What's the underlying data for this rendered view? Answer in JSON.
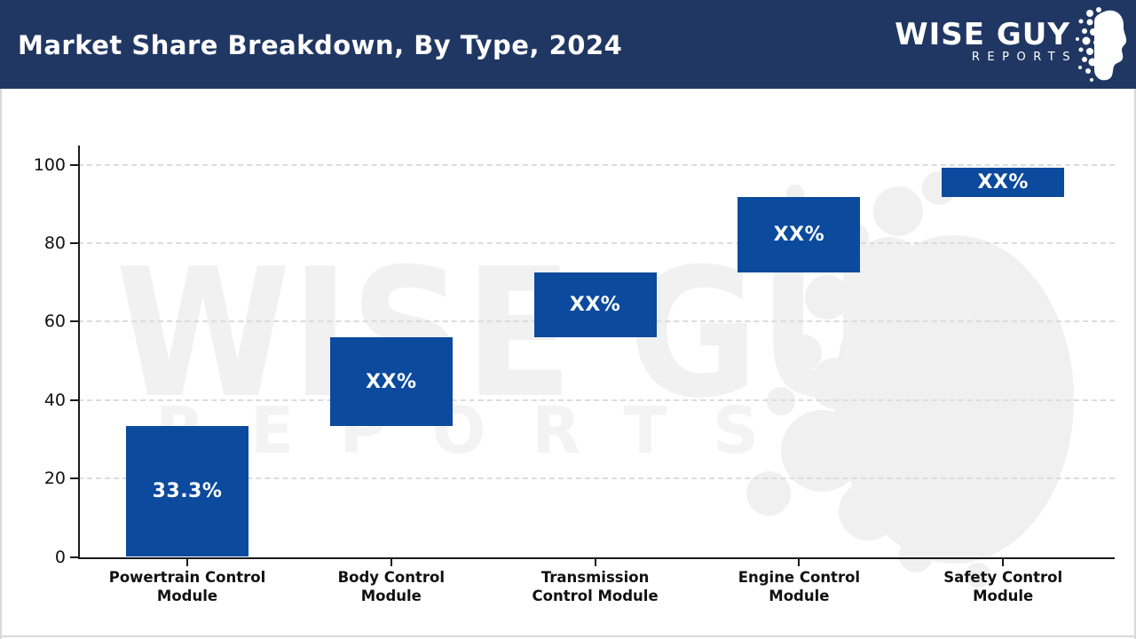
{
  "header": {
    "title": "Market Share Breakdown, By Type, 2024",
    "logo": {
      "brand_line1": "WISE GUY",
      "brand_line2": "REPORTS"
    },
    "bg_color": "#213763"
  },
  "watermark": {
    "line1": "WISE GUY",
    "line2": "REPORTS"
  },
  "chart_data": {
    "type": "bar",
    "variant": "waterfall",
    "title": "Market Share Breakdown, By Type, 2024",
    "categories": [
      {
        "line1": "Powertrain Control",
        "line2": "Module"
      },
      {
        "line1": "Body Control",
        "line2": "Module"
      },
      {
        "line1": "Transmission",
        "line2": "Control Module"
      },
      {
        "line1": "Engine Control",
        "line2": "Module"
      },
      {
        "line1": "Safety Control",
        "line2": "Module"
      }
    ],
    "series": [
      {
        "name": "Market Share (%)",
        "segments": [
          {
            "start": 0,
            "end": 33.3,
            "label": "33.3%"
          },
          {
            "start": 33.3,
            "end": 56.0,
            "label": "XX%"
          },
          {
            "start": 56.0,
            "end": 72.4,
            "label": "XX%"
          },
          {
            "start": 72.4,
            "end": 91.8,
            "label": "XX%"
          },
          {
            "start": 91.8,
            "end": 99.3,
            "label": "XX%"
          }
        ]
      }
    ],
    "yticks": [
      0,
      20,
      40,
      60,
      80,
      100
    ],
    "ylim": [
      0,
      104
    ],
    "xlabel": "",
    "ylabel": "",
    "legend": "none",
    "grid": {
      "horizontal": true,
      "style": "dashed"
    },
    "bar_color": "#0b4a9d",
    "bar_label_color": "#ffffff",
    "axis_color": "#1a1a1a"
  }
}
